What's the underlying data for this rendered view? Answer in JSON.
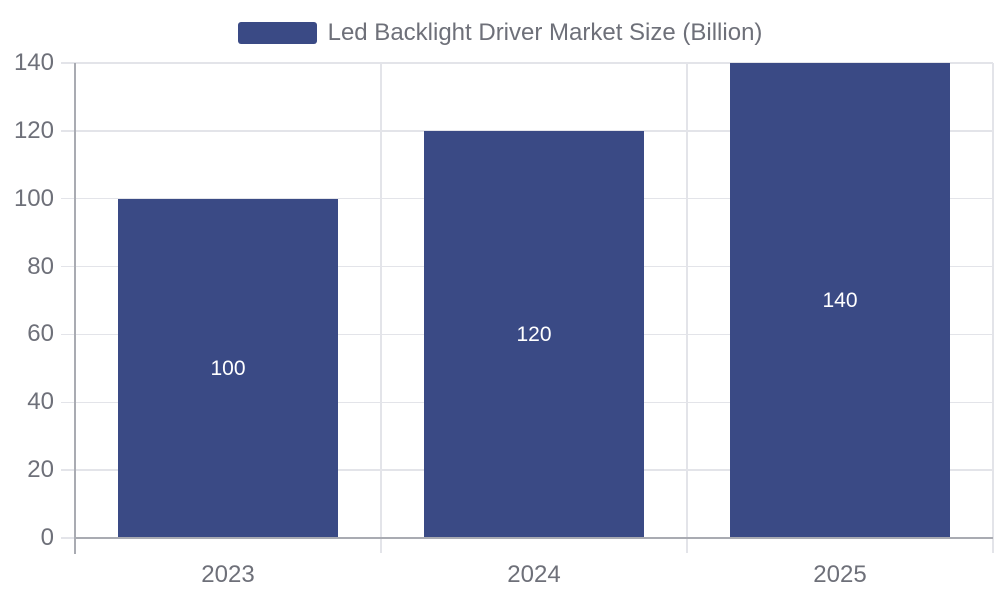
{
  "legend": {
    "label": "Led Backlight Driver Market Size (Billion)"
  },
  "colors": {
    "bar": "#3A4A85",
    "axis_line": "#A9ABB2",
    "gridline": "#E3E4E9",
    "tick_text": "#6E7079",
    "legend_text": "#6E7079",
    "value_label_text": "#FFFFFF",
    "background": "#FFFFFF"
  },
  "chart_data": {
    "type": "bar",
    "title": "Led Backlight Driver Market Size (Billion)",
    "series_name": "Led Backlight Driver Market Size (Billion)",
    "categories": [
      "2023",
      "2024",
      "2025"
    ],
    "values": [
      100,
      120,
      140
    ],
    "value_labels": [
      100,
      120,
      140
    ],
    "value_label_position": "inside-center",
    "xlabel": "",
    "ylabel": "",
    "ylim": [
      0,
      140
    ],
    "yticks": [
      0,
      20,
      40,
      60,
      80,
      100,
      120,
      140
    ],
    "grid": true,
    "legend_position": "top-center"
  }
}
